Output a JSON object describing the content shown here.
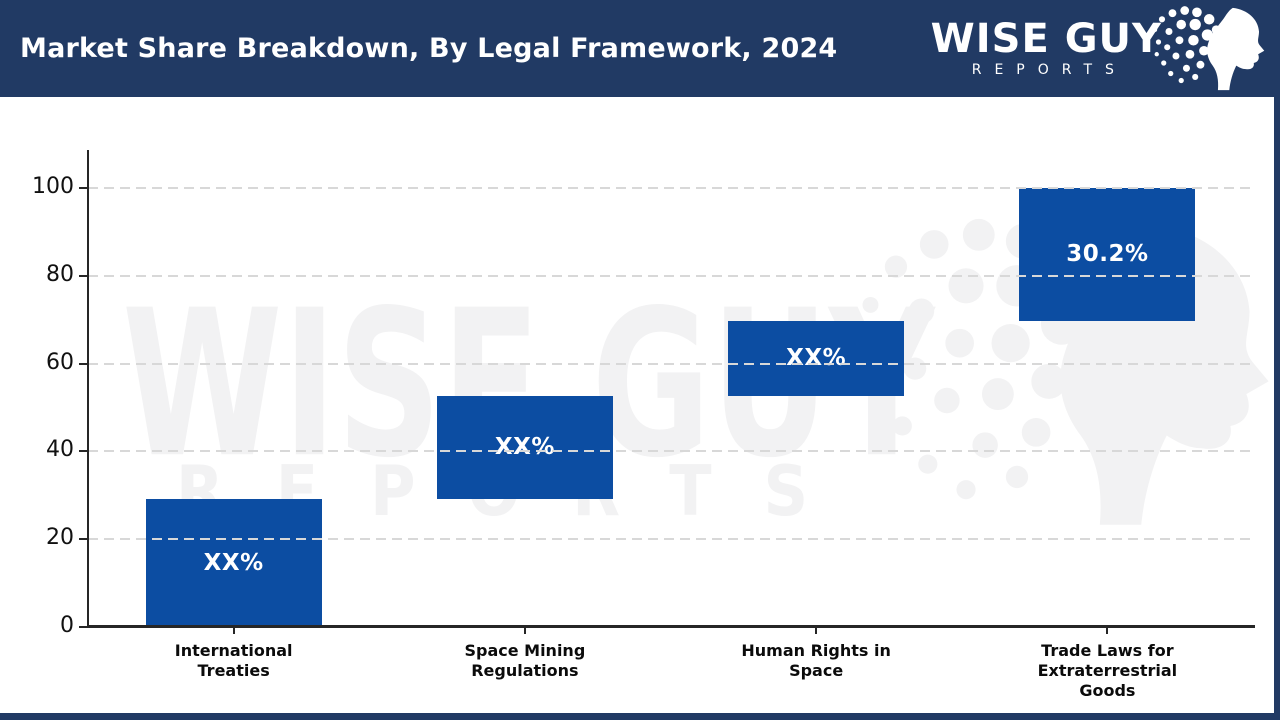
{
  "header": {
    "title": "Market Share Breakdown, By Legal Framework, 2024",
    "logo": {
      "line1": "WISE GUY",
      "line2": "REPORTS"
    }
  },
  "watermark": {
    "line1": "WISE GUY",
    "line2": "REPORTS"
  },
  "chart_data": {
    "type": "bar",
    "subtype": "waterfall",
    "title": "Market Share Breakdown, By Legal Framework, 2024",
    "categories": [
      "International Treaties",
      "Space Mining Regulations",
      "Human Rights in Space",
      "Trade Laws for Extraterrestrial Goods"
    ],
    "category_lines": [
      [
        "International",
        "Treaties"
      ],
      [
        "Space Mining",
        "Regulations"
      ],
      [
        "Human Rights in",
        "Space"
      ],
      [
        "Trade Laws for",
        "Extraterrestrial",
        "Goods"
      ]
    ],
    "segments": [
      {
        "start": 0,
        "end": 29.2,
        "label": "XX%"
      },
      {
        "start": 29.2,
        "end": 52.6,
        "label": "XX%"
      },
      {
        "start": 52.6,
        "end": 69.8,
        "label": "XX%"
      },
      {
        "start": 69.8,
        "end": 100,
        "label": "30.2%"
      }
    ],
    "ylim": [
      0,
      100
    ],
    "yticks": [
      0,
      20,
      40,
      60,
      80,
      100
    ],
    "grid": "horizontal-dashed",
    "legend": "none",
    "bar_color": "#0c4da2"
  },
  "colors": {
    "header_bg": "#213a64",
    "bar": "#0c4da2",
    "grid": "#d8d8d8",
    "axis": "#262626",
    "bar_label": "#ffffff",
    "watermark": "#f2f2f3"
  }
}
